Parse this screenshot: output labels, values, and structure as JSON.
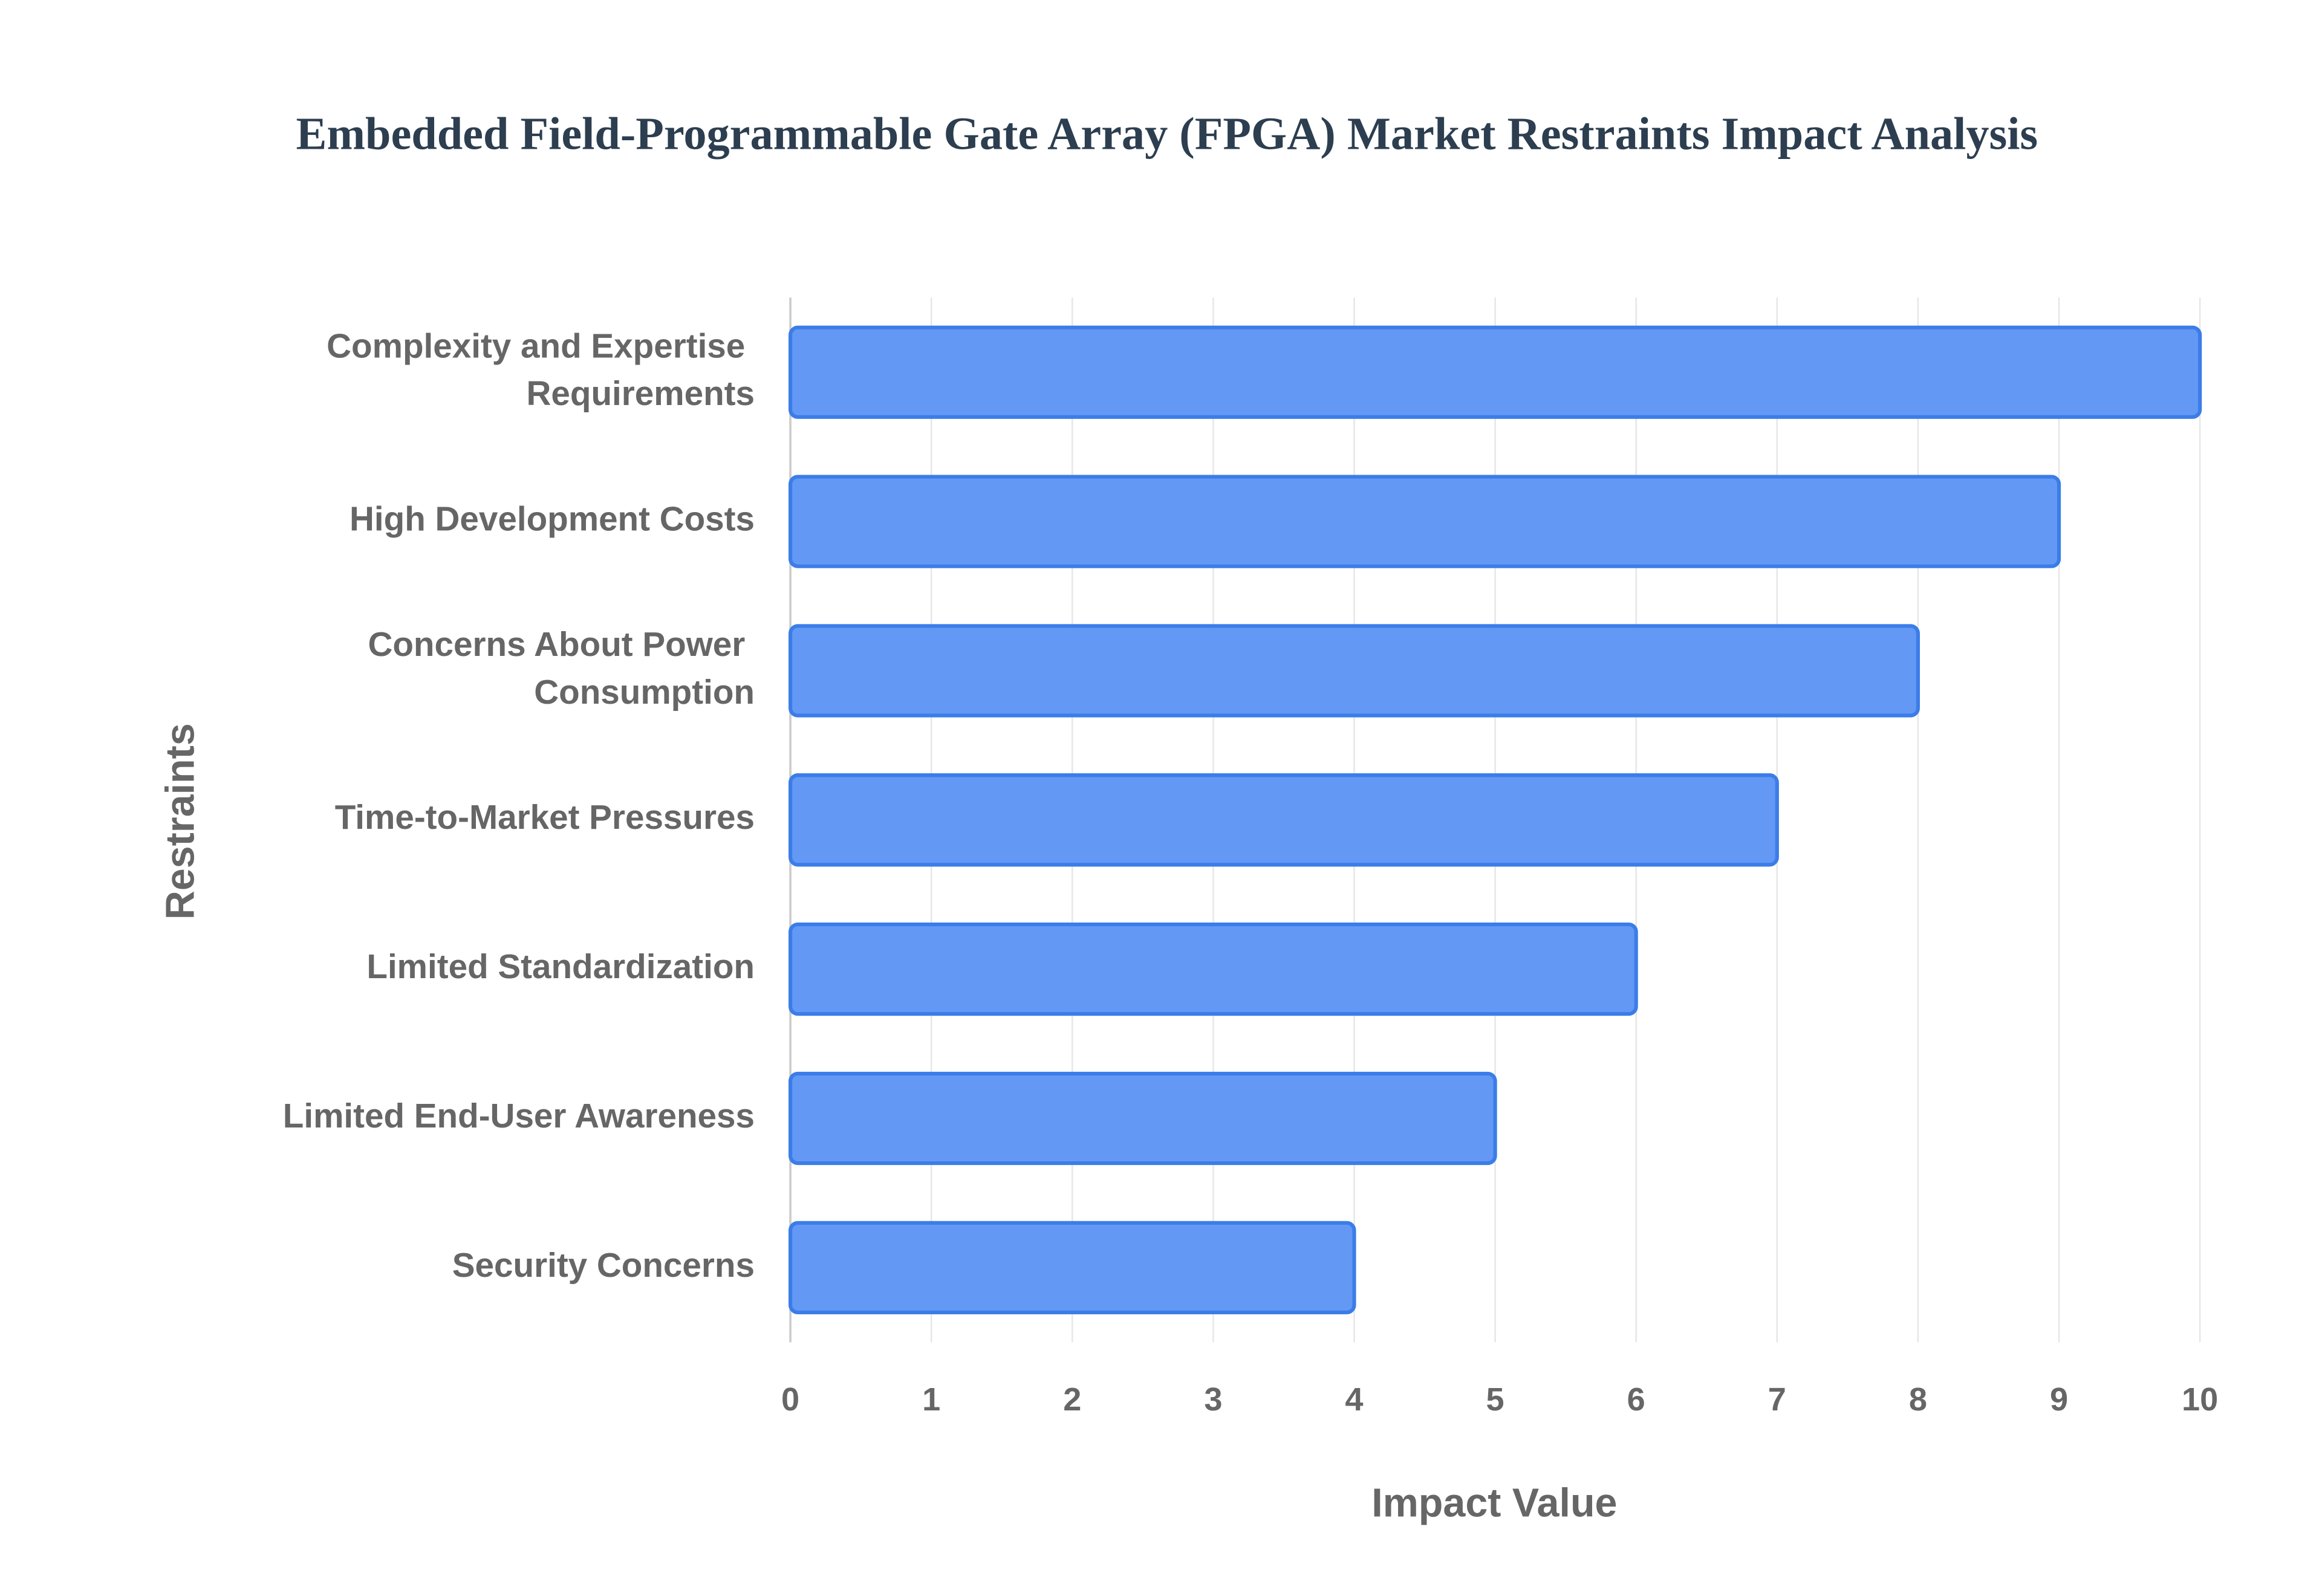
{
  "chart_data": {
    "type": "bar",
    "orientation": "horizontal",
    "title": "Embedded Field-Programmable Gate Array (FPGA) Market Restraints Impact Analysis",
    "x_label": "Impact Value",
    "y_label": "Restraints",
    "categories": [
      "Complexity and Expertise Requirements",
      "High Development Costs",
      "Concerns About Power Consumption",
      "Time-to-Market Pressures",
      "Limited Standardization",
      "Limited End-User Awareness",
      "Security Concerns"
    ],
    "values": [
      10,
      9,
      8,
      7,
      6,
      5,
      4
    ],
    "color": "#6399f5",
    "edge_color": "#3b7de8",
    "xlim": [
      0,
      10
    ],
    "xticks": [
      0,
      1,
      2,
      3,
      4,
      5,
      6,
      7,
      8,
      9,
      10
    ],
    "grid": true
  }
}
